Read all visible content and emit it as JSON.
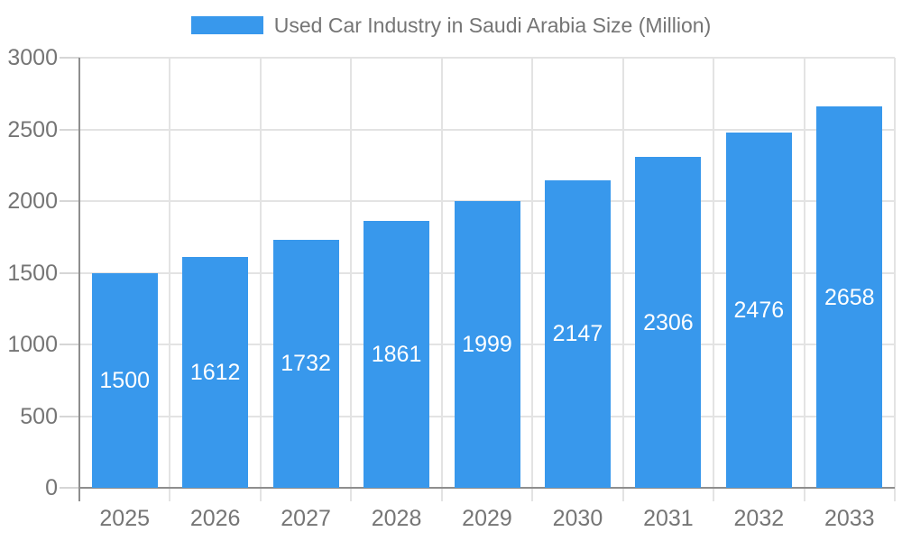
{
  "legend": {
    "label": "Used Car Industry in Saudi Arabia Size (Million)"
  },
  "colors": {
    "bar": "#3898EC",
    "gridline": "#E3E3E3",
    "tick_stub": "#D6D6D6",
    "axis_line": "#8E8E8E",
    "text": "#757575",
    "bar_label": "#FFFFFF",
    "background": "#FFFFFF"
  },
  "chart_data": {
    "type": "bar",
    "title": "Used Car Industry in Saudi Arabia Size (Million)",
    "series": [
      {
        "name": "Used Car Industry in Saudi Arabia Size (Million)",
        "values": [
          1500,
          1612,
          1732,
          1861,
          1999,
          2147,
          2306,
          2476,
          2658
        ],
        "color": "#3898EC"
      }
    ],
    "categories": [
      "2025",
      "2026",
      "2027",
      "2028",
      "2029",
      "2030",
      "2031",
      "2032",
      "2033"
    ],
    "xlabel": "",
    "ylabel": "",
    "ylim": [
      0,
      3000
    ],
    "yticks": [
      0,
      500,
      1000,
      1500,
      2000,
      2500,
      3000
    ],
    "grid": true,
    "legend_position": "top",
    "value_labels": "inside-middle"
  }
}
